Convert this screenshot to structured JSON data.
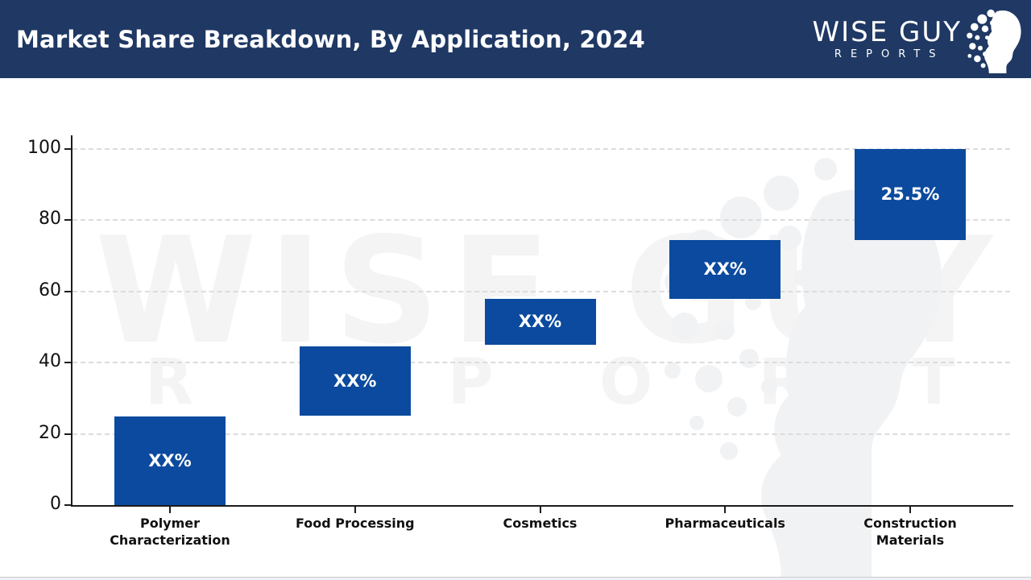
{
  "header": {
    "title": "Market Share Breakdown, By Application, 2024",
    "logo": {
      "line1": "WISE GUY",
      "line2": "REPORTS"
    },
    "bg_color": "#1f3864"
  },
  "watermark": {
    "line1": "WISE GUY",
    "line2": "R E P O R T S"
  },
  "chart_data": {
    "type": "bar",
    "subtype": "waterfall-floating-bars",
    "title": "Market Share Breakdown, By Application, 2024",
    "xlabel": "",
    "ylabel": "",
    "ylim": [
      0,
      105
    ],
    "yticks": [
      0,
      20,
      40,
      60,
      80,
      100
    ],
    "grid": "horizontal-dashed",
    "legend": "none",
    "bar_color": "#0b4a9e",
    "categories": [
      "Polymer Characterization",
      "Food Processing",
      "Cosmetics",
      "Pharmaceuticals",
      "Construction Materials"
    ],
    "segments": [
      {
        "category": "Polymer Characterization",
        "label_lines": [
          "Polymer",
          "Characterization"
        ],
        "start": 0,
        "end": 25,
        "value_label": "XX%"
      },
      {
        "category": "Food Processing",
        "label_lines": [
          "Food Processing"
        ],
        "start": 25,
        "end": 44.5,
        "value_label": "XX%"
      },
      {
        "category": "Cosmetics",
        "label_lines": [
          "Cosmetics"
        ],
        "start": 45,
        "end": 58,
        "value_label": "XX%"
      },
      {
        "category": "Pharmaceuticals",
        "label_lines": [
          "Pharmaceuticals"
        ],
        "start": 58,
        "end": 74.5,
        "value_label": "XX%"
      },
      {
        "category": "Construction Materials",
        "label_lines": [
          "Construction",
          "Materials"
        ],
        "start": 74.5,
        "end": 100,
        "value_label": "25.5%"
      }
    ]
  }
}
